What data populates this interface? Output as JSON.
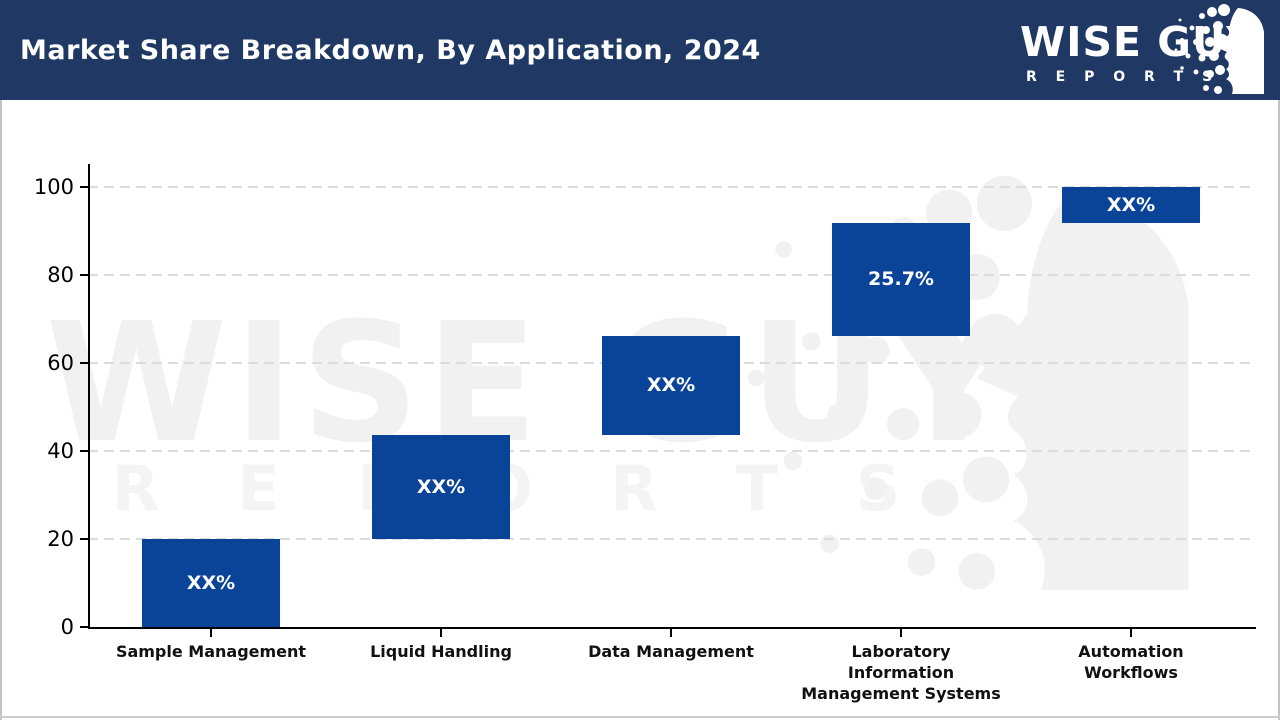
{
  "header": {
    "title": "Market Share Breakdown, By Application, 2024",
    "bg_color": "#1f3864",
    "logo": {
      "line1": "WISE GUY",
      "line2": "R E P O R T S"
    }
  },
  "watermark": {
    "line1": "WISE GUY",
    "line2": "R E P O R T S"
  },
  "chart_data": {
    "type": "bar",
    "subtype": "waterfall",
    "title": "Market Share Breakdown, By Application, 2024",
    "categories": [
      {
        "lines": [
          "Sample Management"
        ]
      },
      {
        "lines": [
          "Liquid Handling"
        ]
      },
      {
        "lines": [
          "Data Management"
        ]
      },
      {
        "lines": [
          "Laboratory",
          "Information",
          "Management Systems"
        ]
      },
      {
        "lines": [
          "Automation",
          "Workflows"
        ]
      }
    ],
    "segments": [
      {
        "start": 0,
        "value": 20,
        "label": "XX%"
      },
      {
        "start": 20,
        "value": 23.6,
        "label": "XX%"
      },
      {
        "start": 43.6,
        "value": 22.6,
        "label": "XX%"
      },
      {
        "start": 66.2,
        "value": 25.7,
        "label": "25.7%"
      },
      {
        "start": 91.9,
        "value": 8.1,
        "label": "XX%"
      }
    ],
    "ylim": [
      0,
      105
    ],
    "yticks": [
      0,
      20,
      40,
      60,
      80,
      100
    ],
    "grid": "horizontal-dashed",
    "legend": "none",
    "bar_color": "#0a4499",
    "bar_label_color": "#ffffff",
    "axis_color": "#000000",
    "gridline_color": "#dcdcdc"
  }
}
